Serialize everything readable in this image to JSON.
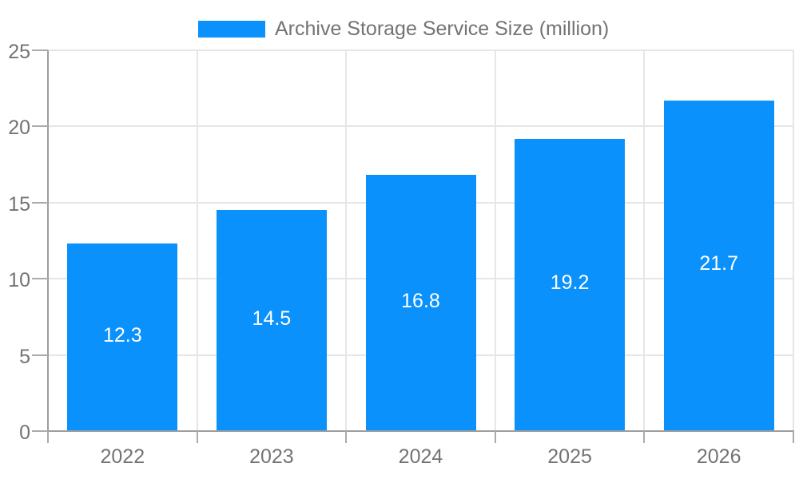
{
  "chart_data": {
    "type": "bar",
    "title": "Archive Storage Service Size (million)",
    "categories": [
      "2022",
      "2023",
      "2024",
      "2025",
      "2026"
    ],
    "values": [
      12.3,
      14.5,
      16.8,
      19.2,
      21.7
    ],
    "value_labels": [
      "12.3",
      "14.5",
      "16.8",
      "19.2",
      "21.7"
    ],
    "xlabel": "",
    "ylabel": "",
    "ylim": [
      0,
      25
    ],
    "yticks": [
      0,
      5,
      10,
      15,
      20,
      25
    ],
    "ytick_labels": [
      "0",
      "5",
      "10",
      "15",
      "20",
      "25"
    ],
    "grid": "horizontal lines at y ticks, vertical lines at category boundaries",
    "legend_position": "top",
    "value_label_position": "inside-center",
    "colors": {
      "bar": "#0a91fb",
      "bar_value_label": "#ffffff",
      "grid": "#e6e6e6",
      "axis": "#9e9e9e",
      "tick": "#ababab",
      "text": "#737373",
      "background": "#ffffff"
    }
  }
}
